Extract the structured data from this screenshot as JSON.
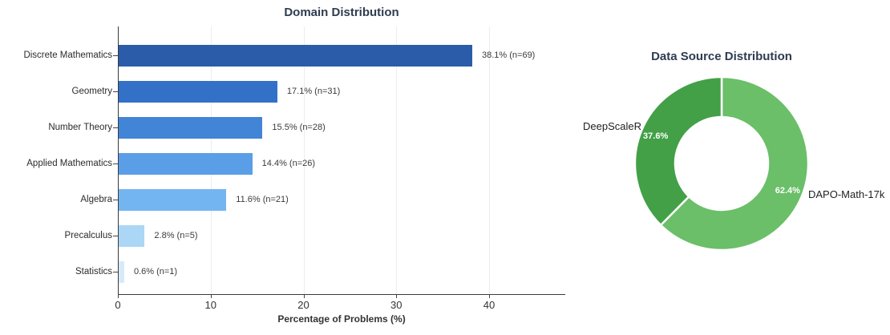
{
  "page": {
    "background": "#ffffff",
    "title_color": "#2e3c50"
  },
  "chart_data": [
    {
      "type": "bar",
      "orientation": "horizontal",
      "title": "Domain Distribution",
      "xlabel": "Percentage of Problems (%)",
      "xlim": [
        0,
        48
      ],
      "xticks": [
        0,
        10,
        20,
        30,
        40
      ],
      "grid": "faint vertical gridlines at ticks",
      "legend": "none",
      "categories": [
        "Discrete Mathematics",
        "Geometry",
        "Number Theory",
        "Applied Mathematics",
        "Algebra",
        "Precalculus",
        "Statistics"
      ],
      "values": [
        38.1,
        17.1,
        15.5,
        14.4,
        11.6,
        2.8,
        0.6
      ],
      "counts": [
        69,
        31,
        28,
        26,
        21,
        5,
        1
      ],
      "value_labels": [
        "38.1% (n=69)",
        "17.1% (n=31)",
        "15.5% (n=28)",
        "14.4% (n=26)",
        "11.6% (n=21)",
        "2.8% (n=5)",
        "0.6% (n=1)"
      ],
      "bar_colors": [
        "#2b5caa",
        "#3371c9",
        "#4285d7",
        "#5a9ee7",
        "#73b5f0",
        "#abd6f6",
        "#d7eafa"
      ],
      "axis_color": "#3a3a3a"
    },
    {
      "type": "pie",
      "subtype": "donut",
      "title": "Data Source Distribution",
      "labels": [
        "DAPO-Math-17k",
        "DeepScaleR"
      ],
      "values": [
        62.4,
        37.6
      ],
      "pct_labels": [
        "62.4%",
        "37.6%"
      ],
      "colors": [
        "#6abf68",
        "#43a047"
      ],
      "start_angle": "12 o'clock, clockwise",
      "inner_radius_ratio": 0.54,
      "separator_color": "#ffffff"
    }
  ]
}
